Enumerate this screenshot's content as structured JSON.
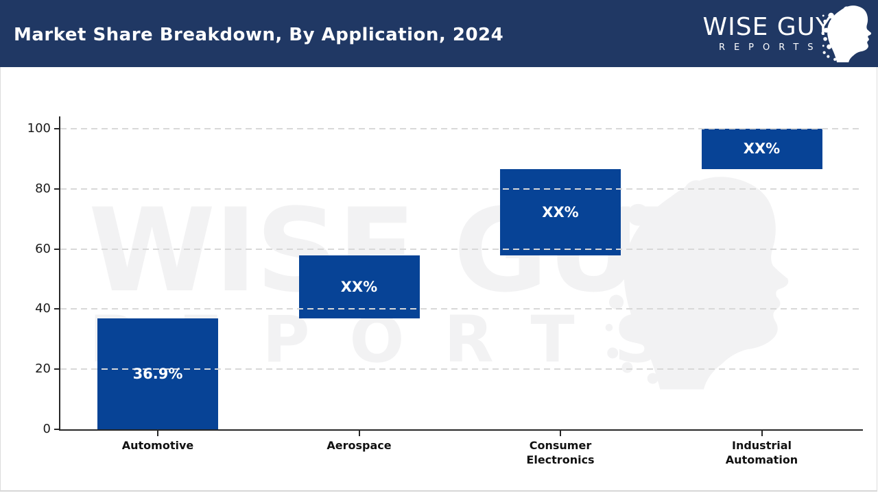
{
  "header": {
    "title": "Market Share Breakdown, By Application, 2024",
    "logo": {
      "line1": "WISE GUY",
      "line2": "REPORTS"
    }
  },
  "watermark": {
    "line1": "WISE GUY",
    "line2": "REPORTS"
  },
  "colors": {
    "header_bg": "#203864",
    "bar": "#074396",
    "axis": "#262626",
    "grid": "#d8d8d8",
    "watermark": "#f2f2f3",
    "value_label": "#ffffff"
  },
  "chart_data": {
    "type": "bar",
    "subtype": "waterfall",
    "title": "Market Share Breakdown, By Application, 2024",
    "categories": [
      "Automotive",
      "Aerospace",
      "Consumer Electronics",
      "Industrial Automation"
    ],
    "category_label_lines": [
      [
        "Automotive"
      ],
      [
        "Aerospace"
      ],
      [
        "Consumer",
        "Electronics"
      ],
      [
        "Industrial",
        "Automation"
      ]
    ],
    "segments": [
      {
        "category": "Automotive",
        "start": 0,
        "end": 36.9,
        "value_label": "36.9%",
        "value_est": 36.9
      },
      {
        "category": "Aerospace",
        "start": 36.9,
        "end": 57.8,
        "value_label": "XX%",
        "value_est": 20.9
      },
      {
        "category": "Consumer Electronics",
        "start": 57.8,
        "end": 86.6,
        "value_label": "XX%",
        "value_est": 28.8
      },
      {
        "category": "Industrial Automation",
        "start": 86.6,
        "end": 100,
        "value_label": "XX%",
        "value_est": 13.4
      }
    ],
    "yticks": [
      0,
      20,
      40,
      60,
      80,
      100
    ],
    "ylim": [
      0,
      104
    ],
    "xlabel": "",
    "ylabel": "",
    "grid": {
      "visible": true,
      "style": "dashed",
      "drawn_over_bars": true
    },
    "legend": {
      "visible": false
    }
  }
}
